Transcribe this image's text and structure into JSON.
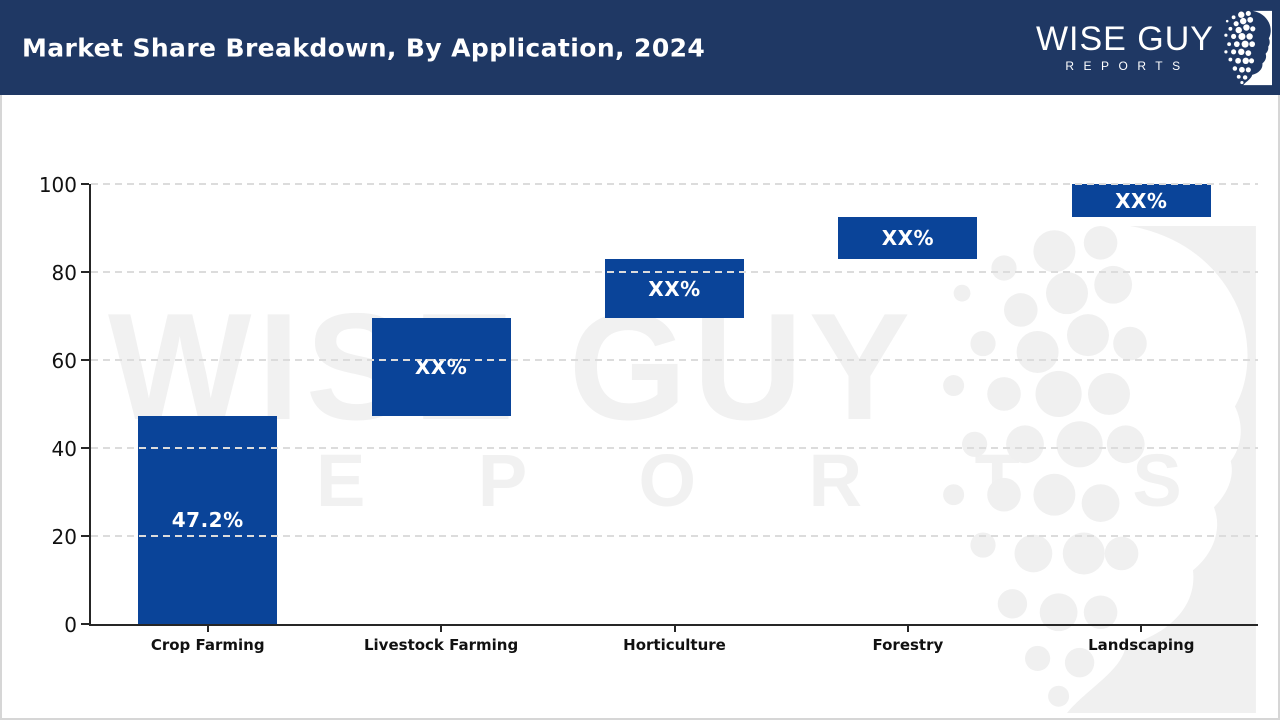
{
  "header": {
    "title": "Market Share Breakdown, By Application, 2024",
    "bg_color": "#1f3864",
    "logo": {
      "name": "WISE GUY",
      "sub": "REPORTS"
    }
  },
  "watermark": {
    "line1": "WISE GUY",
    "line2": "R E P O R T S"
  },
  "chart_data": {
    "type": "bar",
    "subtype": "waterfall-floating-segments",
    "title": "Market Share Breakdown, By Application, 2024",
    "categories": [
      "Crop Farming",
      "Livestock Farming",
      "Horticulture",
      "Forestry",
      "Landscaping"
    ],
    "segments": [
      {
        "category": "Crop Farming",
        "start": 0,
        "end": 47.2,
        "label": "47.2%"
      },
      {
        "category": "Livestock Farming",
        "start": 47.2,
        "end": 69.5,
        "label": "XX%"
      },
      {
        "category": "Horticulture",
        "start": 69.5,
        "end": 83.0,
        "label": "XX%"
      },
      {
        "category": "Forestry",
        "start": 83.0,
        "end": 92.5,
        "label": "XX%"
      },
      {
        "category": "Landscaping",
        "start": 92.5,
        "end": 100,
        "label": "XX%"
      }
    ],
    "ylim": [
      0,
      100
    ],
    "yticks": [
      0,
      20,
      40,
      60,
      80,
      100
    ],
    "grid": {
      "axis": "y",
      "style": "dashed",
      "color": "#dcdcdc",
      "on_top_of_bars": true
    },
    "bar_color": "#0a4499",
    "value_label_color": "#ffffff",
    "axis_color": "#262626",
    "tick_label_color": "#111111",
    "legend": "none",
    "xlabel": "",
    "ylabel": ""
  }
}
